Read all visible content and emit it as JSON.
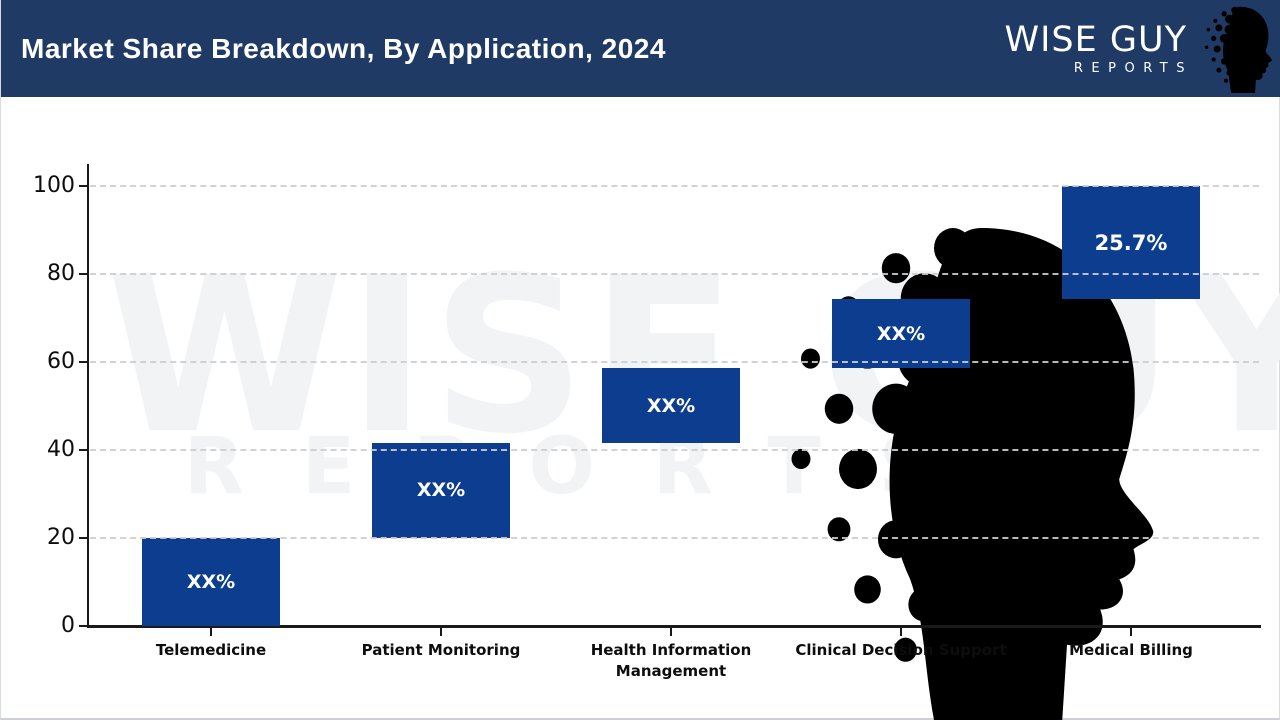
{
  "header": {
    "title": "Market Share Breakdown, By Application, 2024",
    "brand": {
      "line1": "WISE GUY",
      "line2": "REPORTS"
    }
  },
  "watermark": {
    "line1": "WISE GUY",
    "line2": "REPORTS"
  },
  "colors": {
    "header_bg": "#203a66",
    "bar": "#0c3d8e",
    "bar_label": "#ffffff",
    "grid": "#d4d4d9",
    "axis": "#1a1a1a",
    "watermark": "#f2f3f5"
  },
  "chart_data": {
    "type": "bar",
    "subtype": "waterfall",
    "title": "Market Share Breakdown, By Application, 2024",
    "xlabel": "",
    "ylabel": "",
    "ylim": [
      0,
      100
    ],
    "yticks": [
      0,
      20,
      40,
      60,
      80,
      100
    ],
    "grid": "horizontal-dashed, drawn over bars",
    "legend": "none",
    "categories": [
      "Telemedicine",
      "Patient Monitoring",
      "Health Information Management",
      "Clinical Decision Support",
      "Medical Billing"
    ],
    "segments": [
      {
        "start": 0,
        "end": 20
      },
      {
        "start": 20,
        "end": 41.6
      },
      {
        "start": 41.6,
        "end": 58.6
      },
      {
        "start": 58.6,
        "end": 74.3
      },
      {
        "start": 74.3,
        "end": 100
      }
    ],
    "labels": [
      "XX%",
      "XX%",
      "XX%",
      "XX%",
      "25.7%"
    ]
  }
}
